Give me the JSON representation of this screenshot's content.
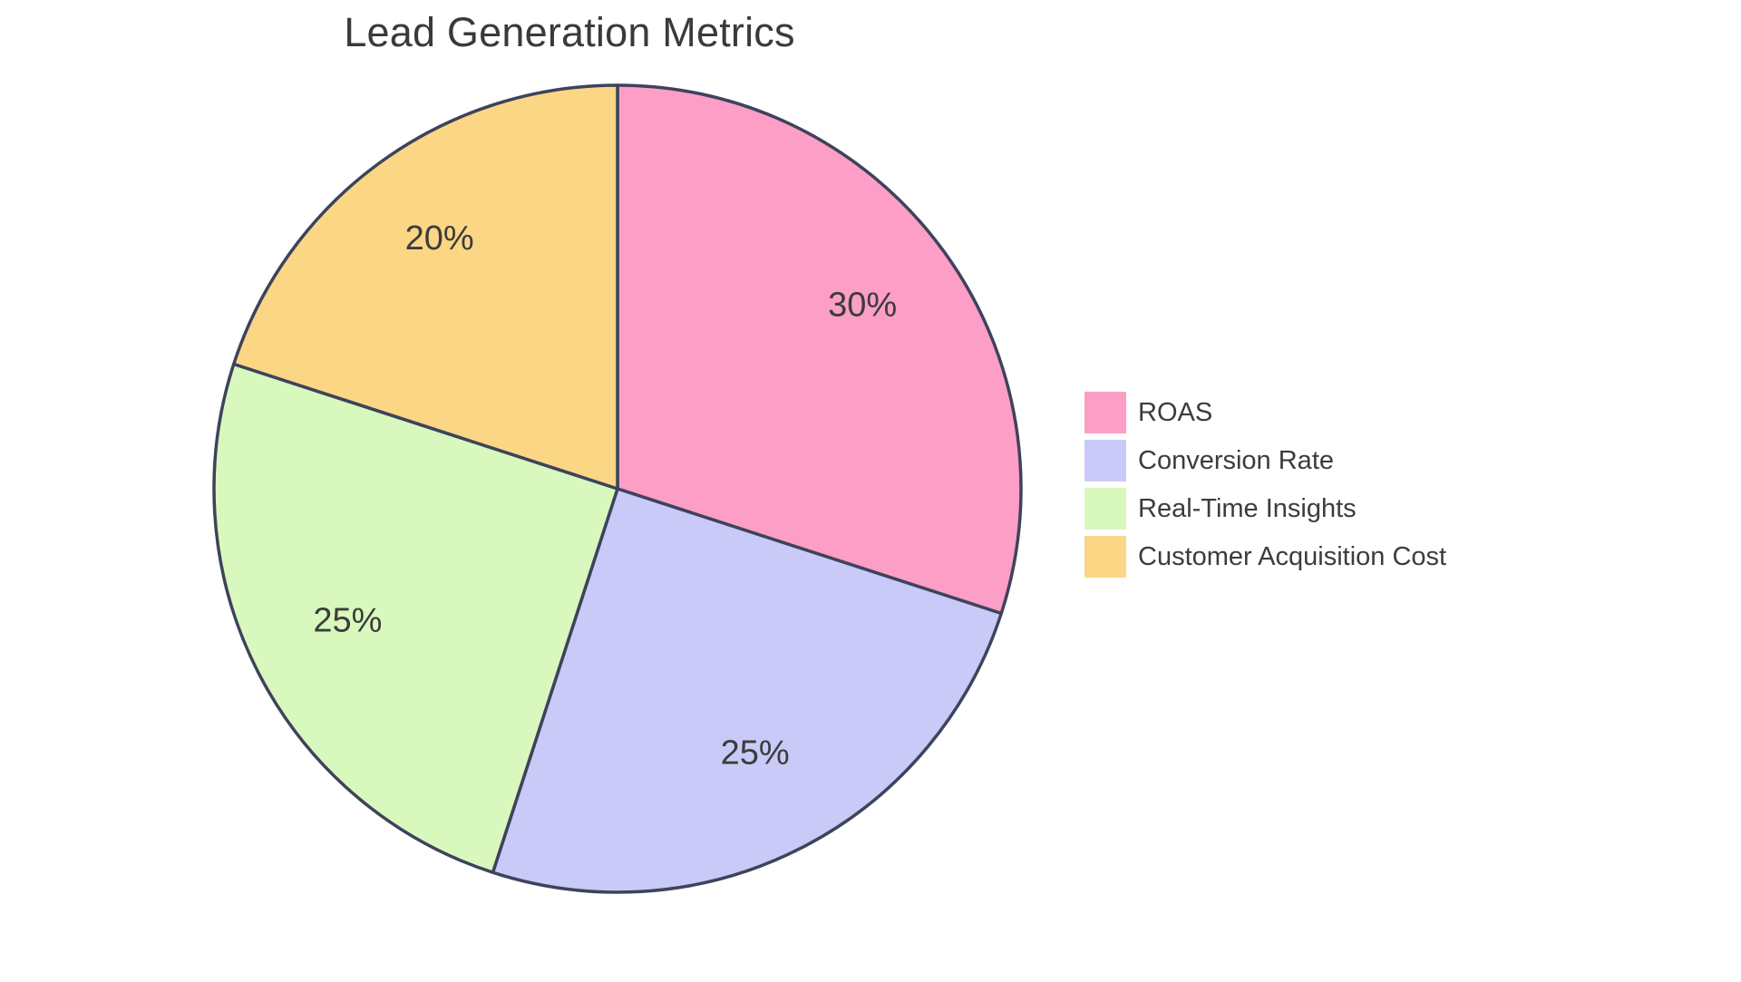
{
  "chart_data": {
    "type": "pie",
    "title": "Lead Generation Metrics",
    "slices": [
      {
        "label": "ROAS",
        "value": 30,
        "display": "30%",
        "color": "#FC9EC6"
      },
      {
        "label": "Conversion Rate",
        "value": 25,
        "display": "25%",
        "color": "#C9CAF7"
      },
      {
        "label": "Real-Time Insights",
        "value": 25,
        "display": "25%",
        "color": "#D9F8BD"
      },
      {
        "label": "Customer Acquisition Cost",
        "value": 20,
        "display": "20%",
        "color": "#FBD685"
      }
    ],
    "start_angle_deg": 0,
    "direction": "clockwise",
    "legend_position": "right",
    "grid": false,
    "stroke_color": "#3E435C",
    "label_color": "#3C3C3C",
    "title_color": "#3A3A3A",
    "background_color": "#FFFFFF"
  }
}
